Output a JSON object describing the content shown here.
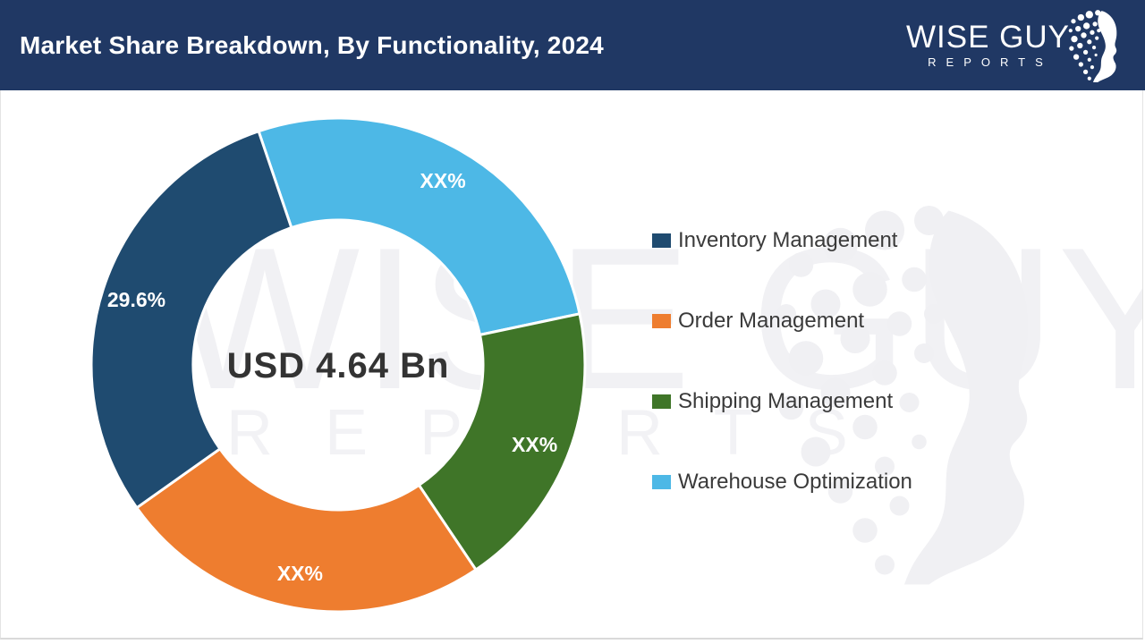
{
  "header": {
    "title": "Market Share Breakdown, By Functionality, 2024",
    "logo": {
      "line1": "WISE GUY",
      "line2": "REPORTS"
    }
  },
  "watermark": {
    "line1": "WISE GUY",
    "line2": "REPORTS"
  },
  "chart_data": {
    "type": "pie",
    "subtype": "donut",
    "title": "Market Share Breakdown, By Functionality, 2024",
    "center_label": "USD 4.64 Bn",
    "start_angle_deg_cw_from_top": -18.8,
    "direction": "counterclockwise",
    "legend_position": "right",
    "segments": [
      {
        "name": "Inventory Management",
        "value": 29.6,
        "label": "29.6%",
        "color": "#1F4B70"
      },
      {
        "name": "Order Management",
        "value": 24.6,
        "label": "XX%",
        "color": "#EE7D2F"
      },
      {
        "name": "Shipping Management",
        "value": 18.9,
        "label": "XX%",
        "color": "#3F7528"
      },
      {
        "name": "Warehouse Optimization",
        "value": 26.9,
        "label": "XX%",
        "color": "#4DB8E6"
      }
    ]
  },
  "colors": {
    "header_bg": "#203864",
    "center_text": "#333333",
    "legend_text": "#3a3a3a",
    "watermark": "#f1f1f4",
    "border": "#d9d9d9"
  }
}
